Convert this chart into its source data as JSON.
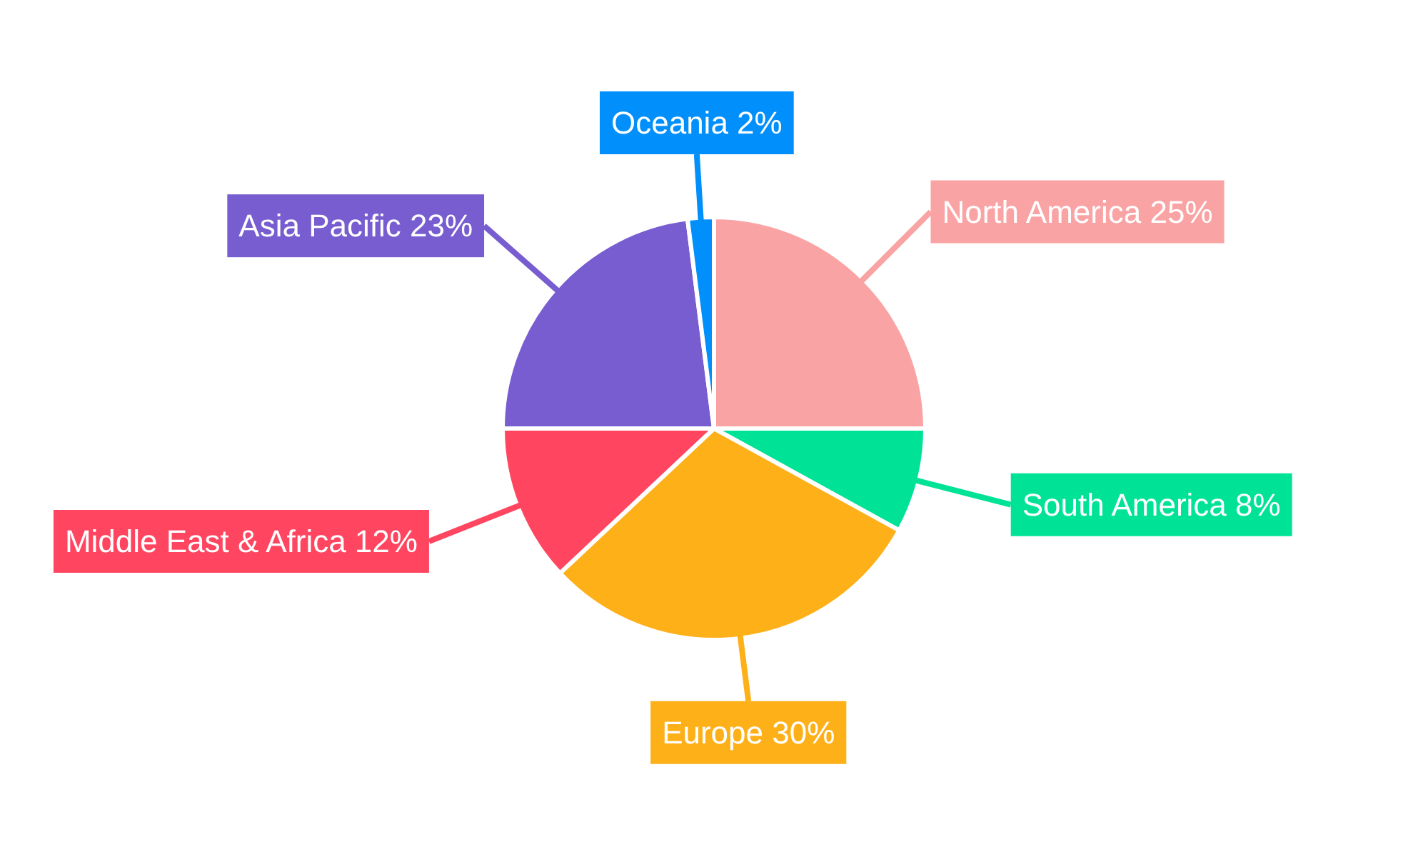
{
  "chart_data": {
    "type": "pie",
    "categories": [
      "North America",
      "South America",
      "Europe",
      "Middle East & Africa",
      "Asia Pacific",
      "Oceania"
    ],
    "values": [
      25,
      8,
      30,
      12,
      23,
      2
    ],
    "value_labels": [
      "25%",
      "8%",
      "30%",
      "12%",
      "23%",
      "2%"
    ],
    "colors": [
      "#f9a3a4",
      "#00e396",
      "#feb019",
      "#ff4560",
      "#775dd0",
      "#008ffb"
    ],
    "legend": false
  }
}
